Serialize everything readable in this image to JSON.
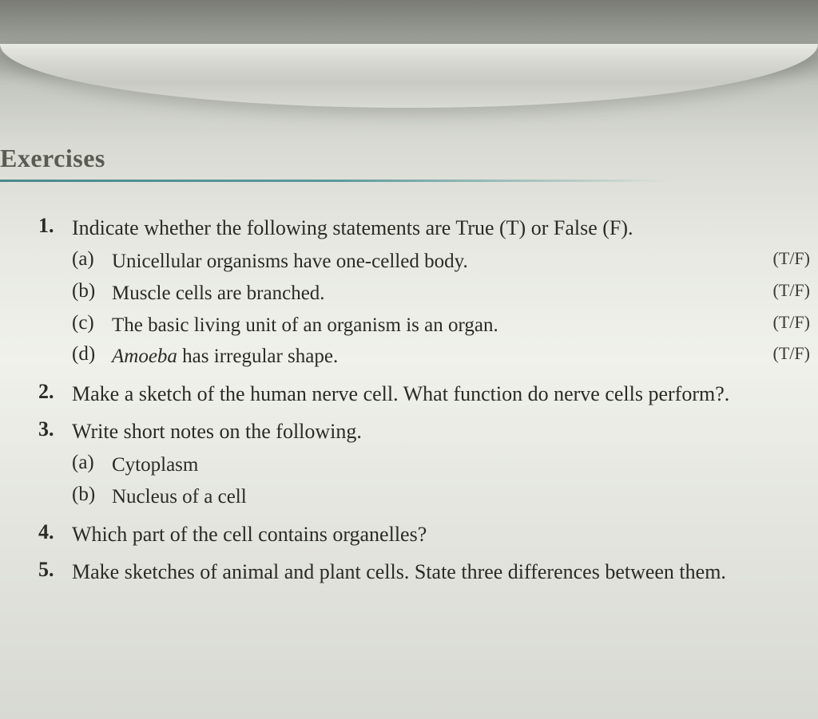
{
  "section_title": "Exercises",
  "colors": {
    "text_primary": "#2a2c24",
    "text_muted": "#5a5c54",
    "divider": "#4a8a8a",
    "background_light": "#f0f1eb",
    "background_shadow": "#a8aba3"
  },
  "typography": {
    "title_fontsize": 32,
    "question_fontsize": 26,
    "subitem_fontsize": 25,
    "tf_fontsize": 22,
    "font_family": "Georgia, serif"
  },
  "questions": [
    {
      "number": "1.",
      "text": "Indicate whether the following statements are True (T) or False (F).",
      "sub_items": [
        {
          "label": "(a)",
          "text": "Unicellular organisms have one-celled body.",
          "tf": "(T/F)"
        },
        {
          "label": "(b)",
          "text": "Muscle cells are branched.",
          "tf": "(T/F)"
        },
        {
          "label": "(c)",
          "text": "The basic living unit of an organism is an organ.",
          "tf": "(T/F)"
        },
        {
          "label": "(d)",
          "text_prefix": "",
          "text_italic": "Amoeba",
          "text_suffix": " has irregular shape.",
          "tf": "(T/F)"
        }
      ]
    },
    {
      "number": "2.",
      "text": "Make a sketch of the human nerve cell. What function do nerve cells perform?."
    },
    {
      "number": "3.",
      "text": "Write short notes on the following.",
      "sub_items": [
        {
          "label": "(a)",
          "text": "Cytoplasm"
        },
        {
          "label": "(b)",
          "text": "Nucleus of a cell"
        }
      ]
    },
    {
      "number": "4.",
      "text": "Which part of the cell contains organelles?"
    },
    {
      "number": "5.",
      "text": "Make sketches of animal and plant cells. State three differences between them."
    }
  ]
}
